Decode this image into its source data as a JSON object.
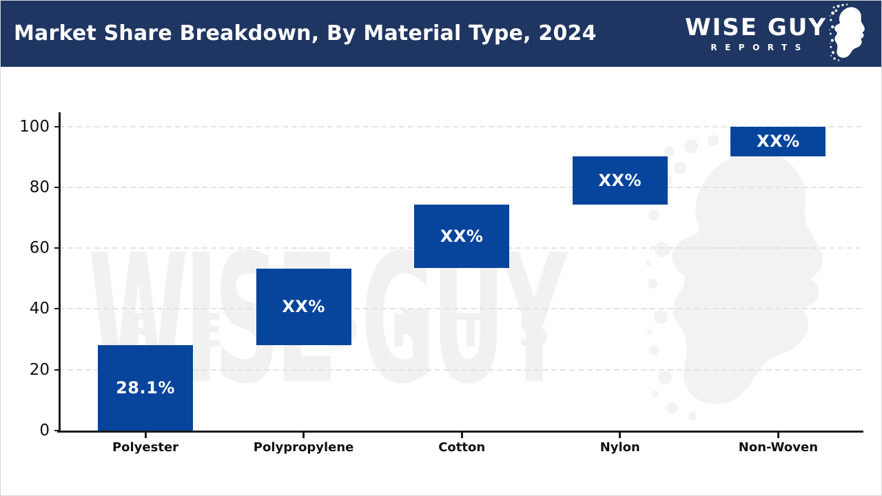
{
  "header": {
    "title": "Market Share Breakdown, By Material Type, 2024",
    "brand": {
      "line1": "WISE GUY",
      "line2": "REPORTS"
    }
  },
  "watermark": {
    "line1": "WISE GUY",
    "line2": "REPORTS"
  },
  "colors": {
    "header_bg": "#1F3662",
    "bar": "#07449C",
    "grid": "#e2e2e2",
    "axis": "#1a1a1a",
    "watermark": "#f1f1f2",
    "label_text": "#ffffff"
  },
  "chart_data": {
    "type": "bar",
    "variant": "waterfall",
    "title": "Market Share Breakdown, By Material Type, 2024",
    "categories": [
      "Polyester",
      "Polypropylene",
      "Cotton",
      "Nylon",
      "Non-Woven"
    ],
    "segments": [
      {
        "category": "Polyester",
        "start": 0,
        "end": 28.1,
        "label": "28.1%"
      },
      {
        "category": "Polypropylene",
        "start": 28.1,
        "end": 53.3,
        "label": "XX%"
      },
      {
        "category": "Cotton",
        "start": 53.4,
        "end": 74.3,
        "label": "XX%"
      },
      {
        "category": "Nylon",
        "start": 74.4,
        "end": 90.1,
        "label": "XX%"
      },
      {
        "category": "Non-Woven",
        "start": 90.1,
        "end": 100,
        "label": "XX%"
      }
    ],
    "increments": [
      28.1,
      25.2,
      20.9,
      15.7,
      9.9
    ],
    "yticks": [
      0,
      20,
      40,
      60,
      80,
      100
    ],
    "ylim": [
      0,
      105
    ],
    "xlabel": "",
    "ylabel": "",
    "grid": true,
    "grid_style": "dashed",
    "legend": "none",
    "bar_color": "#07449C"
  }
}
